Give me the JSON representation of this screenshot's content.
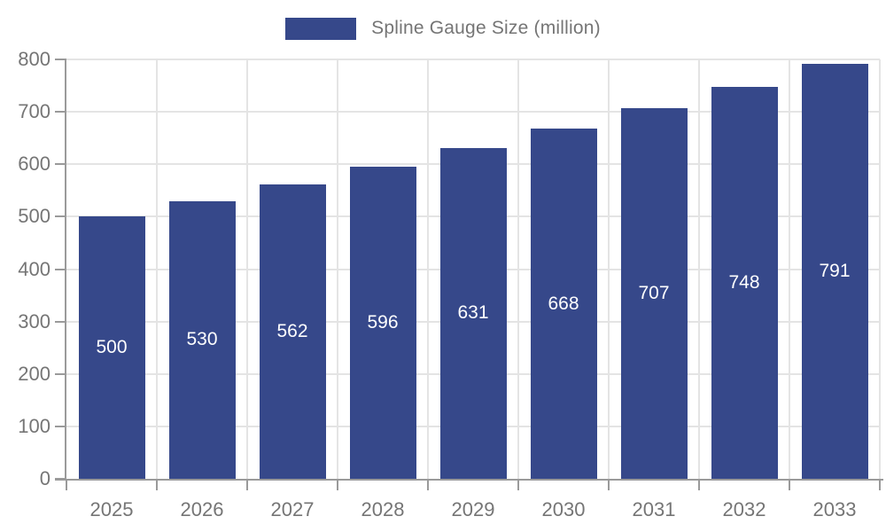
{
  "legend": {
    "label": "Spline Gauge Size (million)"
  },
  "colors": {
    "bar": "#36488A",
    "axis": "#9a9a9a",
    "grid": "#e4e4e4",
    "tick_text": "#757575",
    "legend_text": "#757575",
    "data_label": "#ffffff",
    "background": "#ffffff"
  },
  "chart_data": {
    "type": "bar",
    "title": "Spline Gauge Size (million)",
    "series_name": "Spline Gauge Size (million)",
    "categories": [
      "2025",
      "2026",
      "2027",
      "2028",
      "2029",
      "2030",
      "2031",
      "2032",
      "2033"
    ],
    "values": [
      500,
      530,
      562,
      596,
      631,
      668,
      707,
      748,
      791
    ],
    "xlabel": "",
    "ylabel": "",
    "ylim": [
      0,
      800
    ],
    "ytick_interval": 100,
    "ytick_labels": [
      "0",
      "100",
      "200",
      "300",
      "400",
      "500",
      "600",
      "700",
      "800"
    ],
    "grid": true,
    "legend_position": "top-center",
    "value_labels": "inside-middle-white"
  }
}
